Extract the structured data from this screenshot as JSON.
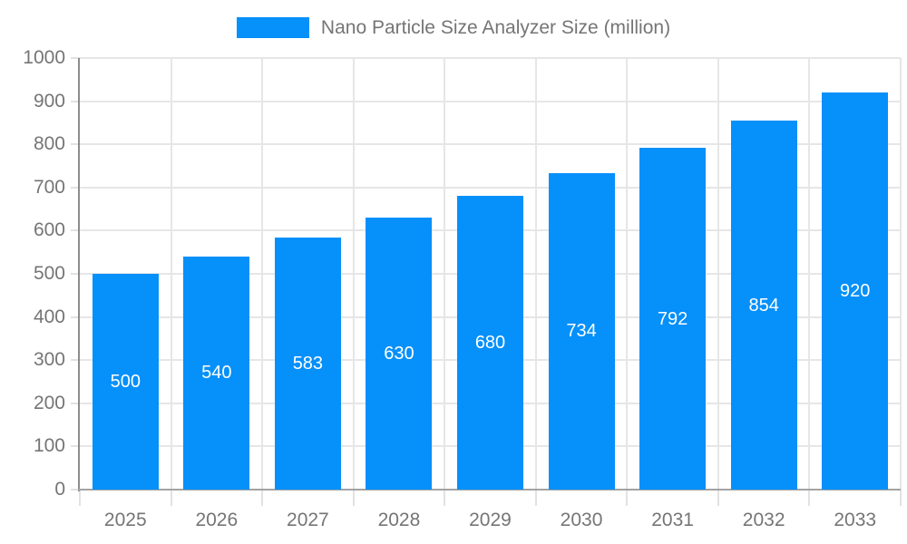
{
  "chart_data": {
    "type": "bar",
    "title": "",
    "legend": "Nano Particle Size Analyzer Size (million)",
    "legend_position": "top-center",
    "categories": [
      "2025",
      "2026",
      "2027",
      "2028",
      "2029",
      "2030",
      "2031",
      "2032",
      "2033"
    ],
    "values": [
      500,
      540,
      583,
      630,
      680,
      734,
      792,
      854,
      920
    ],
    "xlabel": "",
    "ylabel": "",
    "ylim": [
      0,
      1000
    ],
    "ytick_step": 100,
    "ytick_labels": [
      "0",
      "100",
      "200",
      "300",
      "400",
      "500",
      "600",
      "700",
      "800",
      "900",
      "1000"
    ],
    "grid": "on",
    "bar_labels_inside": true,
    "colors": {
      "bar": "#0590fa",
      "bar_label": "#ffffff",
      "axis_text": "#757575",
      "grid_line": "#e6e6e6",
      "tick_line": "#e2e2e2",
      "axis_line_y": "#8c8c8c",
      "axis_line_x": "#a3a3a3",
      "background": "#ffffff"
    }
  }
}
